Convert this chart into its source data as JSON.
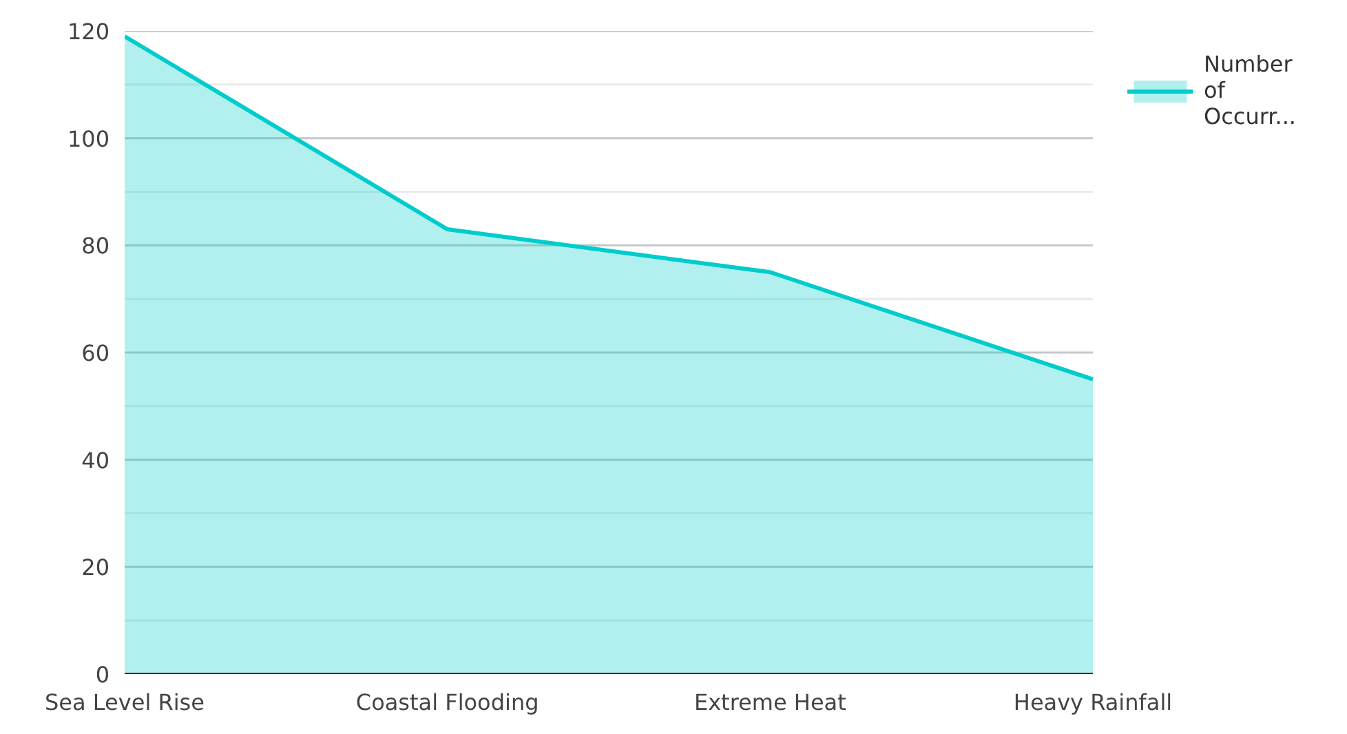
{
  "chart_data": {
    "type": "area",
    "categories": [
      "Sea Level Rise",
      "Coastal Flooding",
      "Extreme Heat",
      "Heavy Rainfall"
    ],
    "series": [
      {
        "name": "Number of Occurr...",
        "color": "#00cccc",
        "values": [
          119,
          83,
          75,
          55
        ]
      }
    ],
    "ylim": [
      0,
      120
    ],
    "yticks": [
      0,
      {
        "value": 10,
        "label": null
      },
      20,
      {
        "value": 30,
        "label": null
      },
      40,
      {
        "value": 50,
        "label": null
      },
      60,
      {
        "value": 70,
        "label": null
      },
      80,
      {
        "value": 90,
        "label": null
      },
      100,
      {
        "value": 110,
        "label": null
      },
      120
    ],
    "grid": "y",
    "legend": "top right"
  }
}
